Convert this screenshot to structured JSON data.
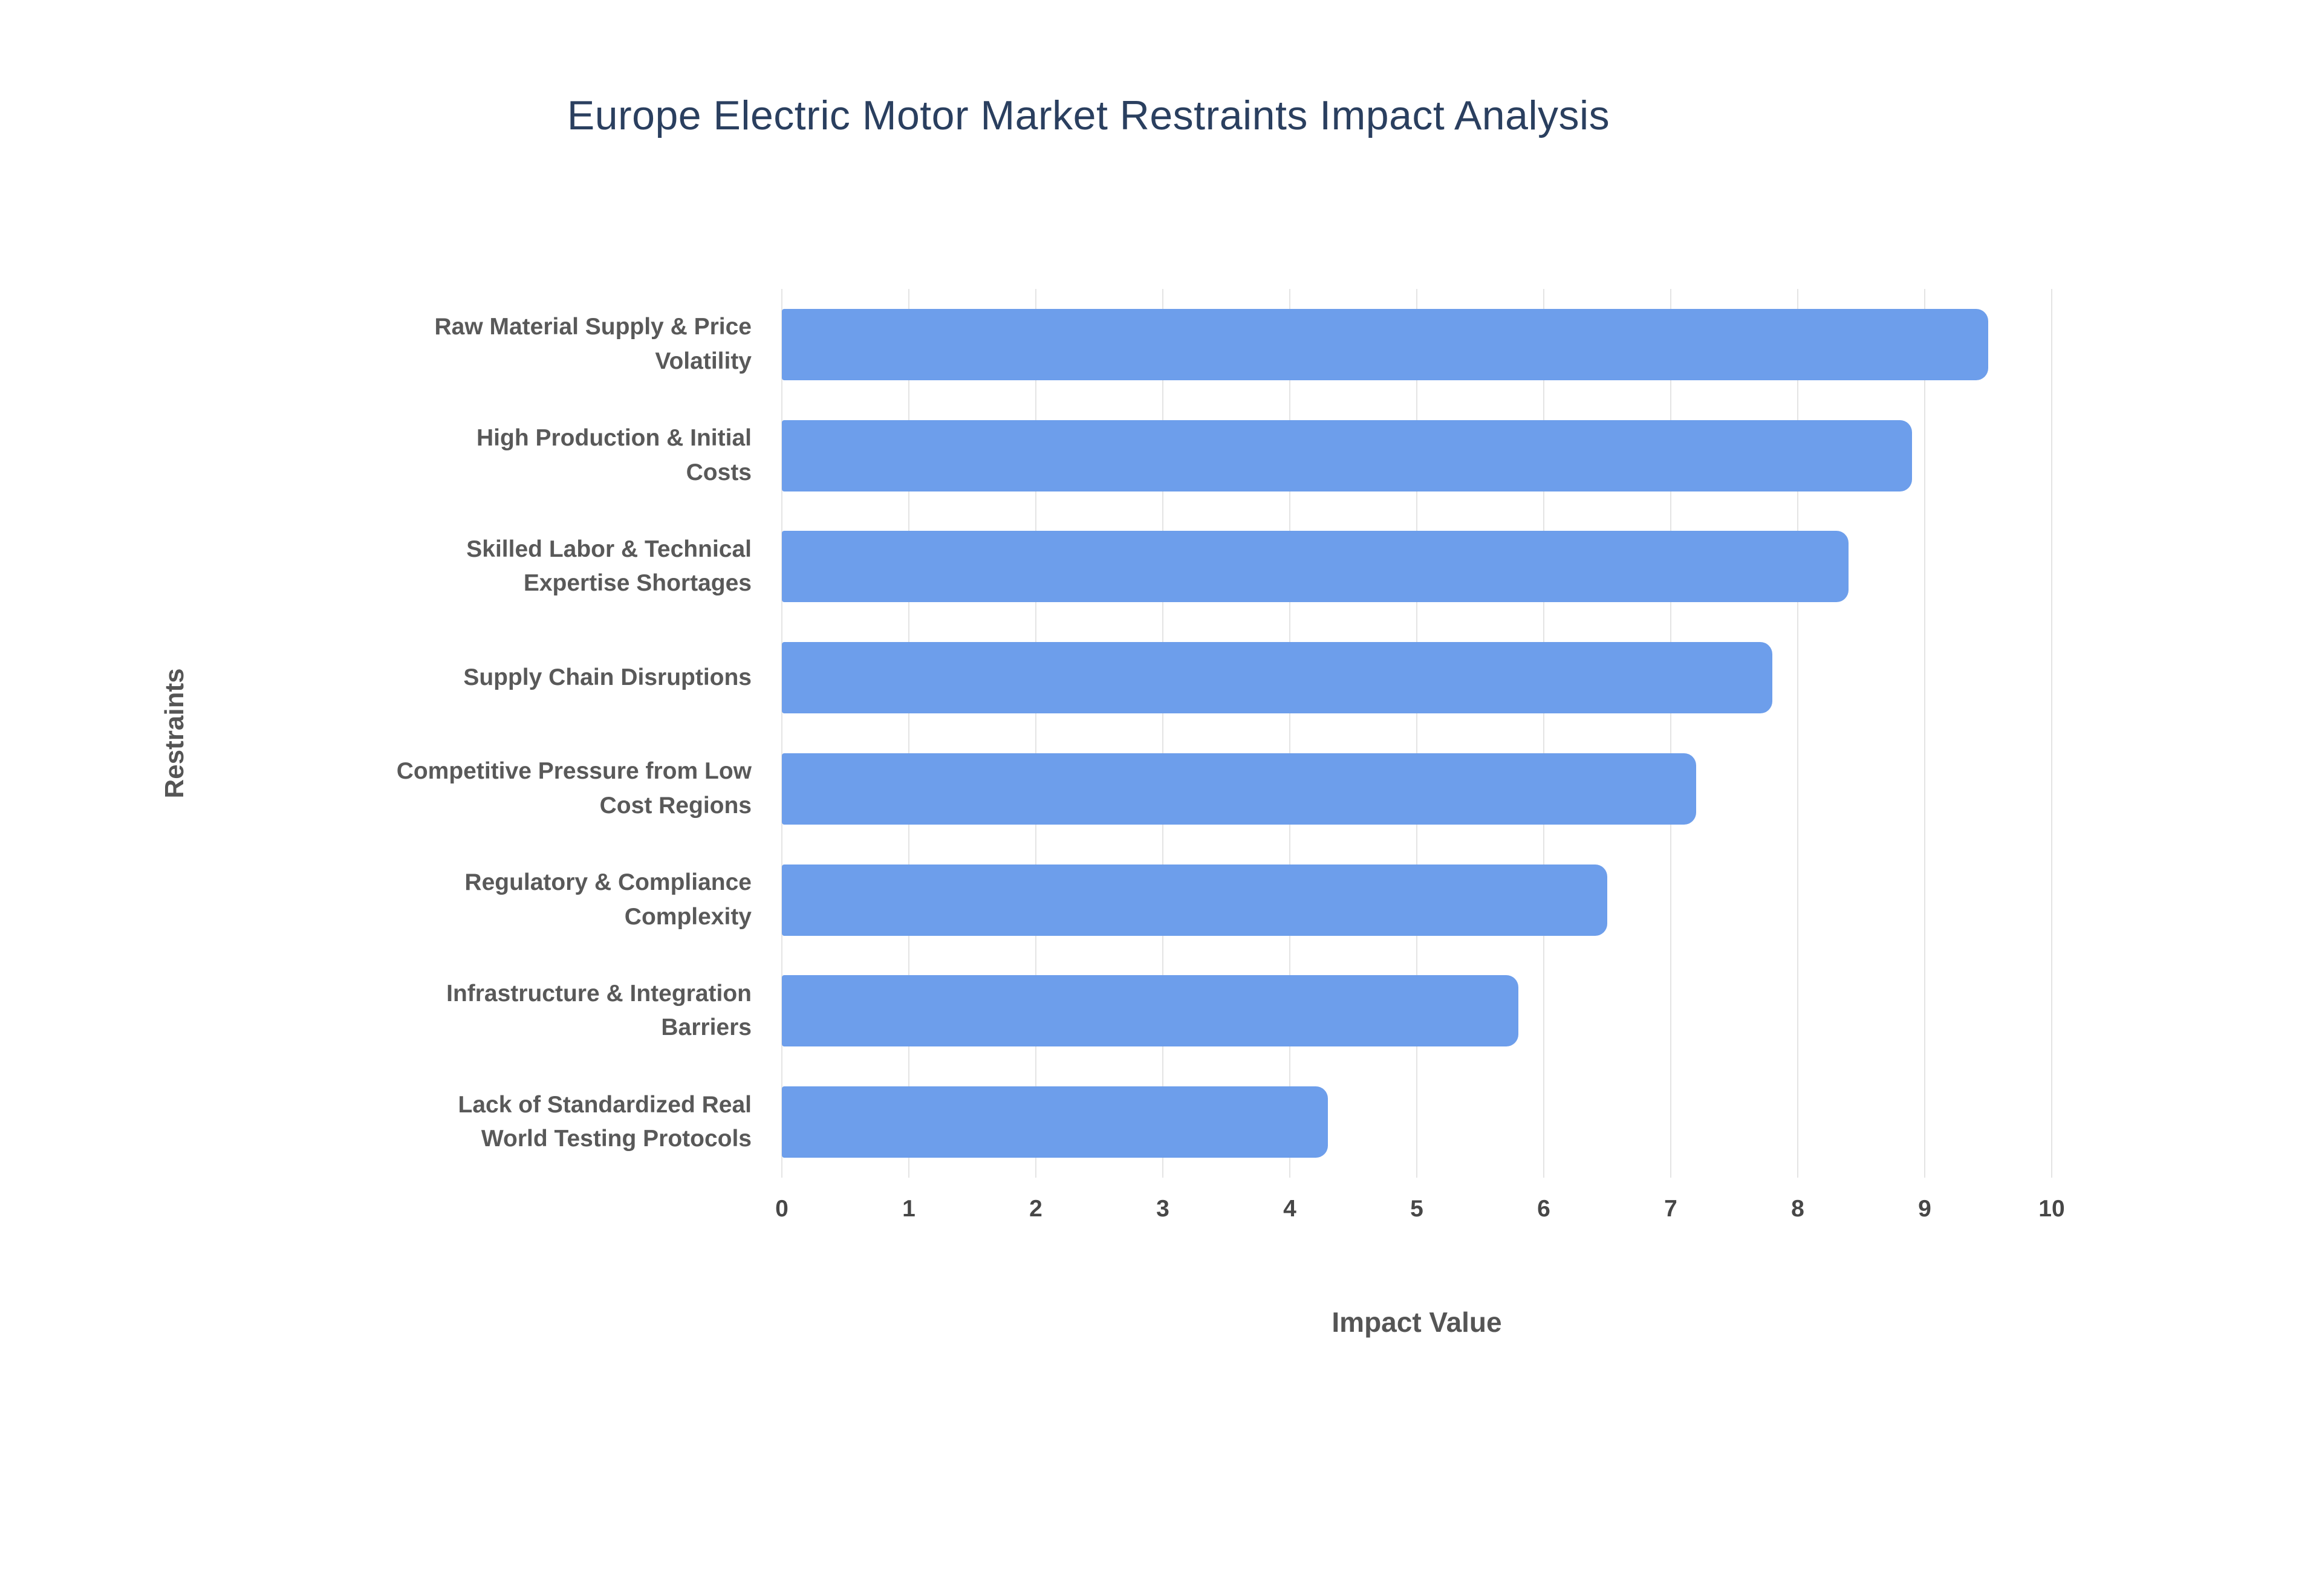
{
  "title": "Europe Electric Motor Market Restraints Impact Analysis",
  "chart_data": {
    "type": "bar",
    "orientation": "horizontal",
    "title": "Europe Electric Motor Market Restraints Impact Analysis",
    "categories": [
      "Raw Material Supply & Price Volatility",
      "High Production & Initial Costs",
      "Skilled Labor & Technical Expertise Shortages",
      "Supply Chain Disruptions",
      "Competitive Pressure from Low Cost Regions",
      "Regulatory & Compliance Complexity",
      "Infrastructure & Integration Barriers",
      "Lack of Standardized Real World Testing Protocols"
    ],
    "wrapped_labels": [
      "Raw Material Supply & Price\nVolatility",
      "High Production & Initial\nCosts",
      "Skilled Labor & Technical\nExpertise Shortages",
      "Supply Chain Disruptions",
      "Competitive Pressure from Low\nCost Regions",
      "Regulatory & Compliance\nComplexity",
      "Infrastructure & Integration\nBarriers",
      "Lack of Standardized Real\nWorld Testing Protocols"
    ],
    "values": [
      9.5,
      8.9,
      8.4,
      7.8,
      7.2,
      6.5,
      5.8,
      4.3
    ],
    "xlabel": "Impact Value",
    "ylabel": "Restraints",
    "xlim": [
      0,
      10
    ],
    "xticks": [
      0,
      1,
      2,
      3,
      4,
      5,
      6,
      7,
      8,
      9,
      10
    ],
    "grid": true,
    "legend": false
  },
  "colors": {
    "background": "#ffffff",
    "bar": "#6d9eeb",
    "title": "#2a3f5f",
    "axis_title": "#555555",
    "category_label": "#595959",
    "tick_label": "#474747",
    "gridline": "#e4e4e4"
  }
}
